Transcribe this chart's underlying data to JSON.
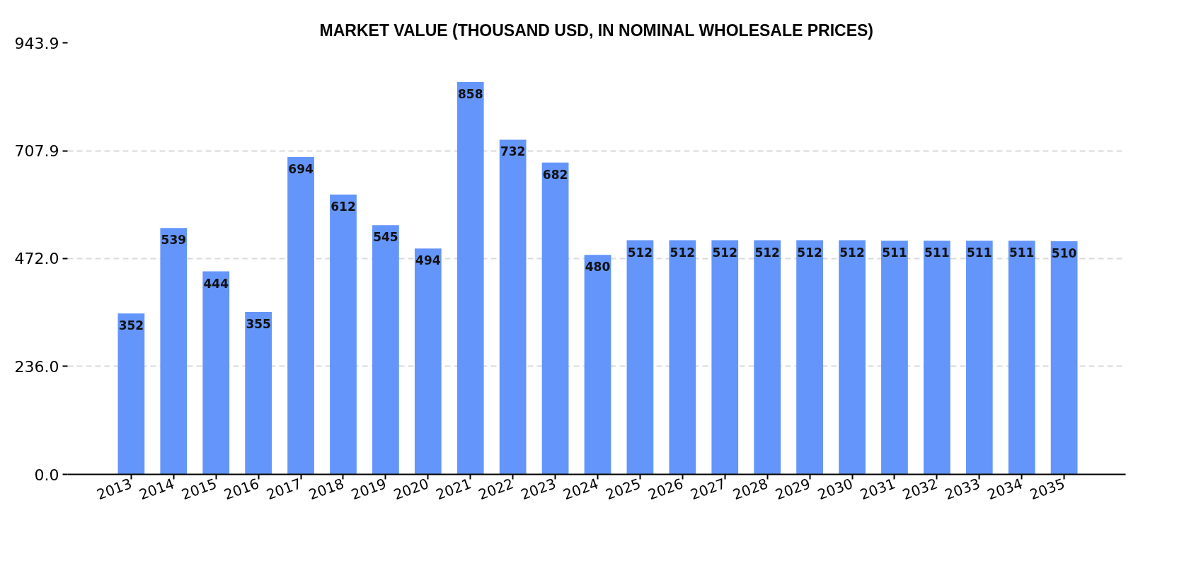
{
  "chart_data": {
    "type": "bar",
    "title": "MARKET VALUE (THOUSAND USD, IN NOMINAL WHOLESALE PRICES)",
    "categories": [
      "2013",
      "2014",
      "2015",
      "2016",
      "2017",
      "2018",
      "2019",
      "2020",
      "2021",
      "2022",
      "2023",
      "2024",
      "2025",
      "2026",
      "2027",
      "2028",
      "2029",
      "2030",
      "2031",
      "2032",
      "2033",
      "2034",
      "2035"
    ],
    "values": [
      352,
      539,
      444,
      355,
      694,
      612,
      545,
      494,
      858,
      732,
      682,
      480,
      512,
      512,
      512,
      512,
      512,
      512,
      511,
      511,
      511,
      511,
      510
    ],
    "color": "#6495fa",
    "ylim": [
      0,
      943.9
    ],
    "yticks": [
      {
        "value": 0,
        "label": "0.0"
      },
      {
        "value": 236,
        "label": "236.0"
      },
      {
        "value": 472,
        "label": "472.0"
      },
      707.9,
      943.9
    ],
    "grid": "y",
    "data_labels": true
  }
}
